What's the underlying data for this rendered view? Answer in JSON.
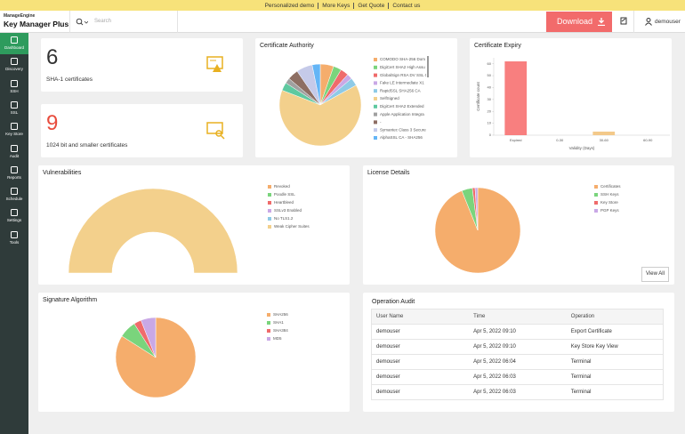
{
  "top_bar": {
    "links": [
      "Personalized demo",
      "More Keys",
      "Get Quote",
      "Contact us"
    ]
  },
  "header": {
    "brand_small": "ManageEngine",
    "brand": "Key Manager Plus",
    "search_placeholder": "Search",
    "download": "Download",
    "user": "demouser"
  },
  "sidebar": [
    "Dashboard",
    "Discovery",
    "SSH",
    "SSL",
    "Key Store",
    "Audit",
    "Reports",
    "Schedule",
    "Settings",
    "Tools"
  ],
  "summary": [
    {
      "value": 6,
      "label": "SHA-1 certificates"
    },
    {
      "value": 9,
      "label": "1024 bit and smaller certificates"
    }
  ],
  "chart_data": [
    {
      "type": "pie",
      "title": "Certificate Authority",
      "categories": [
        "COMODO SHA-256 Dom",
        "DigiCert SHA2 High Assu",
        "GlobalSign RSA DV SSL C",
        "Fake LE Intermediate X1",
        "RapidSSL SHA256 CA",
        "SelfSigned",
        "DigiCert SHA2 Extended",
        "Apple Application Integra",
        "-",
        "Symantec Class 3 Secure",
        "AlphaSSL CA - SHA256"
      ],
      "values": [
        5,
        3,
        3,
        2,
        3,
        60,
        3,
        2,
        4,
        6,
        3
      ],
      "colors": [
        "#f5ad6c",
        "#7ad47c",
        "#ef6b6b",
        "#c9a8e6",
        "#8ecae6",
        "#f3d08c",
        "#5fc9a0",
        "#a0a0a0",
        "#8d6e63",
        "#c5cae9",
        "#64b5f6"
      ]
    },
    {
      "type": "bar",
      "title": "Certificate Expiry",
      "xlabel": "Validity (Days)",
      "ylabel": "Certificate count",
      "categories": [
        "Expired",
        "0-30",
        "30-60",
        "60-90"
      ],
      "values": [
        62,
        0,
        3,
        0
      ],
      "colors": [
        "#f87f7f",
        "#f3c98a",
        "#f3c98a",
        "#f3c98a"
      ],
      "ylim": [
        0,
        65
      ],
      "yticks": [
        0,
        10,
        20,
        30,
        40,
        50,
        60
      ]
    },
    {
      "type": "half-donut",
      "title": "Vulnerabilities",
      "categories": [
        "Revoked",
        "Poodle SSL",
        "Heartbleed",
        "SSLv3 Enabled",
        "No TLS1.2",
        "Weak Cipher Suites"
      ],
      "values": [
        0,
        0,
        0,
        0,
        0,
        100
      ],
      "colors": [
        "#f5ad6c",
        "#7ad47c",
        "#ef6b6b",
        "#c9a8e6",
        "#8ecae6",
        "#f3d08c"
      ]
    },
    {
      "type": "pie",
      "title": "License Details",
      "button": "View All",
      "categories": [
        "Certificates",
        "SSH Keys",
        "Key Store",
        "PGP Keys"
      ],
      "values": [
        93,
        4,
        1,
        1
      ],
      "colors": [
        "#f5ad6c",
        "#7ad47c",
        "#ef6b6b",
        "#c9a8e6"
      ]
    },
    {
      "type": "pie",
      "title": "Signature Algorithm",
      "categories": [
        "SHA256",
        "SHA1",
        "SHA384",
        "MD5"
      ],
      "values": [
        84,
        7,
        3,
        6
      ],
      "colors": [
        "#f5ad6c",
        "#7ad47c",
        "#ef6b6b",
        "#c9a8e6"
      ]
    }
  ],
  "audit": {
    "title": "Operation Audit",
    "columns": [
      "User Name",
      "Time",
      "Operation"
    ],
    "rows": [
      [
        "demouser",
        "Apr 5, 2022 09:10",
        "Export Certificate"
      ],
      [
        "demouser",
        "Apr 5, 2022 09:10",
        "Key Store Key View"
      ],
      [
        "demouser",
        "Apr 5, 2022 06:04",
        "Terminal"
      ],
      [
        "demouser",
        "Apr 5, 2022 06:03",
        "Terminal"
      ],
      [
        "demouser",
        "Apr 5, 2022 06:03",
        "Terminal"
      ]
    ]
  }
}
